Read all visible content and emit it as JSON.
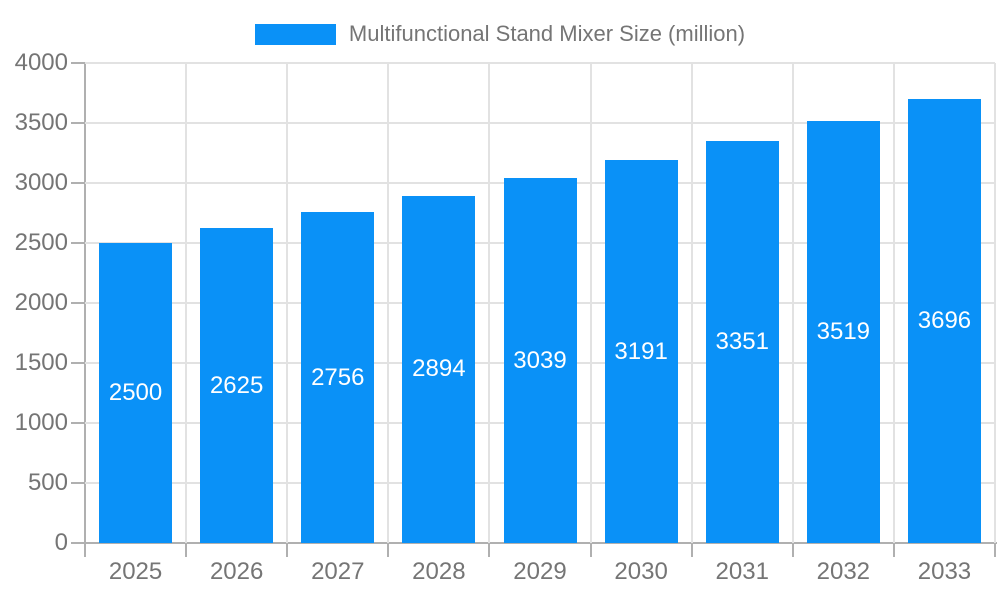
{
  "chart_data": {
    "type": "bar",
    "title": "Multifunctional Stand Mixer Size (million)",
    "categories": [
      "2025",
      "2026",
      "2027",
      "2028",
      "2029",
      "2030",
      "2031",
      "2032",
      "2033"
    ],
    "values": [
      2500,
      2625,
      2756,
      2894,
      3039,
      3191,
      3351,
      3519,
      3696
    ],
    "xlabel": "",
    "ylabel": "",
    "ylim": [
      0,
      4000
    ],
    "ytick_step": 500,
    "ytick_labels": [
      "0",
      "500",
      "1000",
      "1500",
      "2000",
      "2500",
      "3000",
      "3500",
      "4000"
    ],
    "grid": true,
    "legend_position": "top-center",
    "value_label_position": "inside-center",
    "colors": {
      "bar": "#0a91f7",
      "bar_value_label": "#ffffff",
      "axis_line": "#b0b0b0",
      "gridline": "#e2e2e2",
      "tick_text": "#757575",
      "legend_text": "#757575",
      "background": "#ffffff"
    }
  }
}
